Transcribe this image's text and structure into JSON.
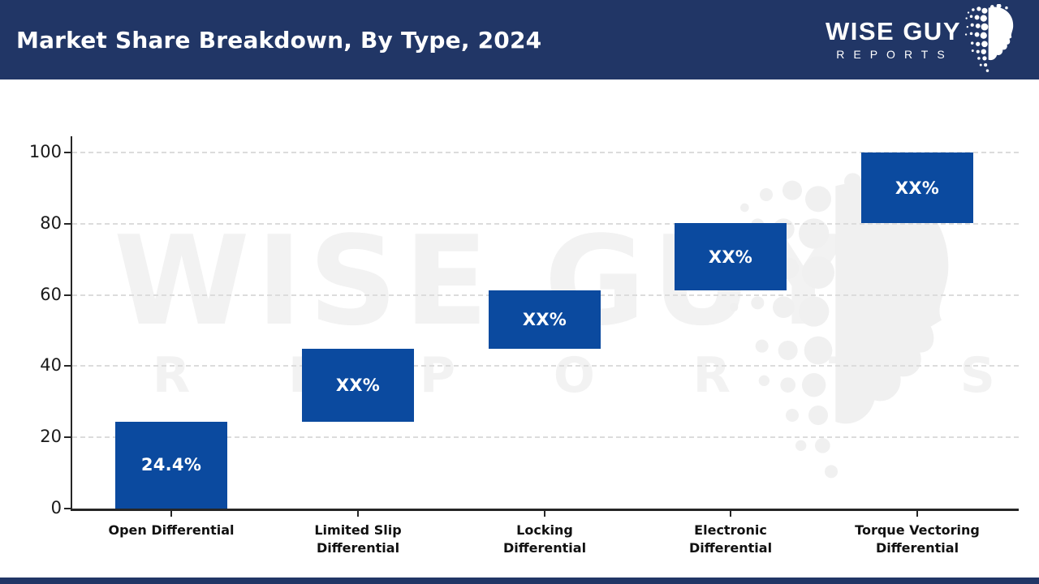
{
  "header": {
    "title": "Market Share Breakdown, By Type, 2024",
    "logo": {
      "line1": "WISE GUY",
      "line2": "REPORTS"
    }
  },
  "watermark": {
    "line1": "WISE GUY",
    "line2": "R E P O R T S"
  },
  "colors": {
    "header_bg": "#213666",
    "footer_bg": "#213666",
    "bar": "#0b4a9f",
    "bar_label": "#ffffff",
    "grid": "#dcdcdc",
    "axis": "#262626",
    "tick_label": "#1a1a1a",
    "watermark": "#f2f2f2"
  },
  "chart_data": {
    "type": "bar",
    "subtype": "waterfall",
    "title": "Market Share Breakdown, By Type, 2024",
    "categories": [
      [
        "Open Differential"
      ],
      [
        "Limited Slip",
        "Differential"
      ],
      [
        "Locking",
        "Differential"
      ],
      [
        "Electronic",
        "Differential"
      ],
      [
        "Torque Vectoring",
        "Differential"
      ]
    ],
    "segments": [
      {
        "label": "24.4%",
        "start": 0,
        "end": 24.4
      },
      {
        "label": "XX%",
        "start": 24.4,
        "end": 44.9
      },
      {
        "label": "XX%",
        "start": 44.9,
        "end": 61.2
      },
      {
        "label": "XX%",
        "start": 61.2,
        "end": 80.1
      },
      {
        "label": "XX%",
        "start": 80.1,
        "end": 100
      }
    ],
    "ylim": [
      0,
      100
    ],
    "yticks": [
      0,
      20,
      40,
      60,
      80,
      100
    ],
    "xlabel": "",
    "ylabel": "",
    "grid": "dashed-horizontal",
    "legend": "none"
  }
}
